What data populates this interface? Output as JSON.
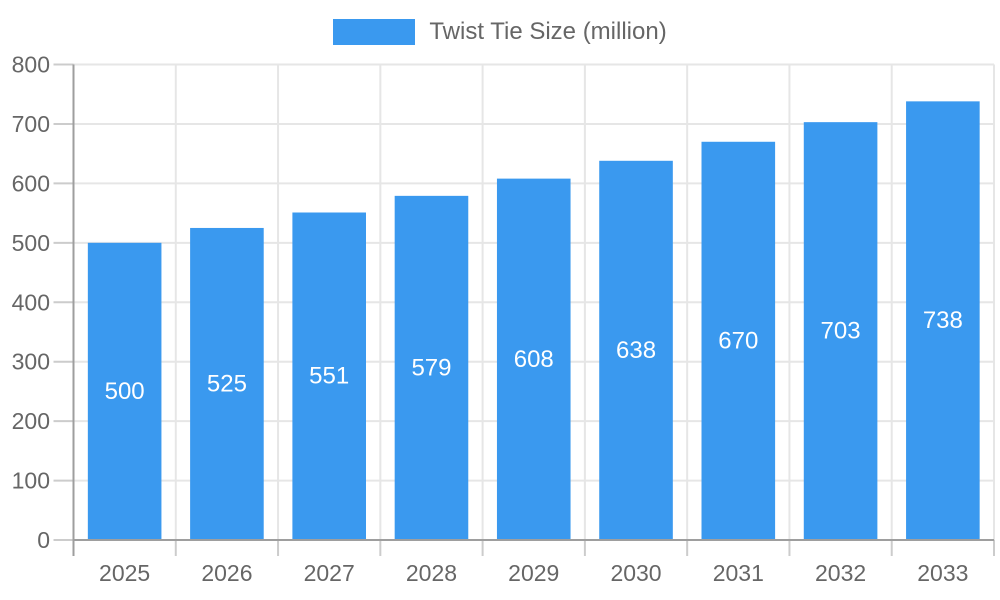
{
  "legend": {
    "label": "Twist Tie Size (million)"
  },
  "chart_data": {
    "type": "bar",
    "title": "Twist Tie Size (million)",
    "categories": [
      "2025",
      "2026",
      "2027",
      "2028",
      "2029",
      "2030",
      "2031",
      "2032",
      "2033"
    ],
    "series": [
      {
        "name": "Twist Tie Size (million)",
        "values": [
          500,
          525,
          551,
          579,
          608,
          638,
          670,
          703,
          738
        ]
      }
    ],
    "xlabel": "",
    "ylabel": "",
    "ylim": [
      0,
      800
    ],
    "yticks": [
      0,
      100,
      200,
      300,
      400,
      500,
      600,
      700,
      800
    ],
    "grid": true,
    "legend_position": "top-center",
    "value_label_position": "inside-center",
    "colors": {
      "bar": "#3a99ef",
      "value_label": "#ffffff",
      "axis_line": "#9e9e9e",
      "grid_line": "#e6e6e6",
      "tick_mark": "#cccccc",
      "tick_text": "#666666",
      "legend_text": "#666666",
      "background": "#ffffff"
    }
  }
}
